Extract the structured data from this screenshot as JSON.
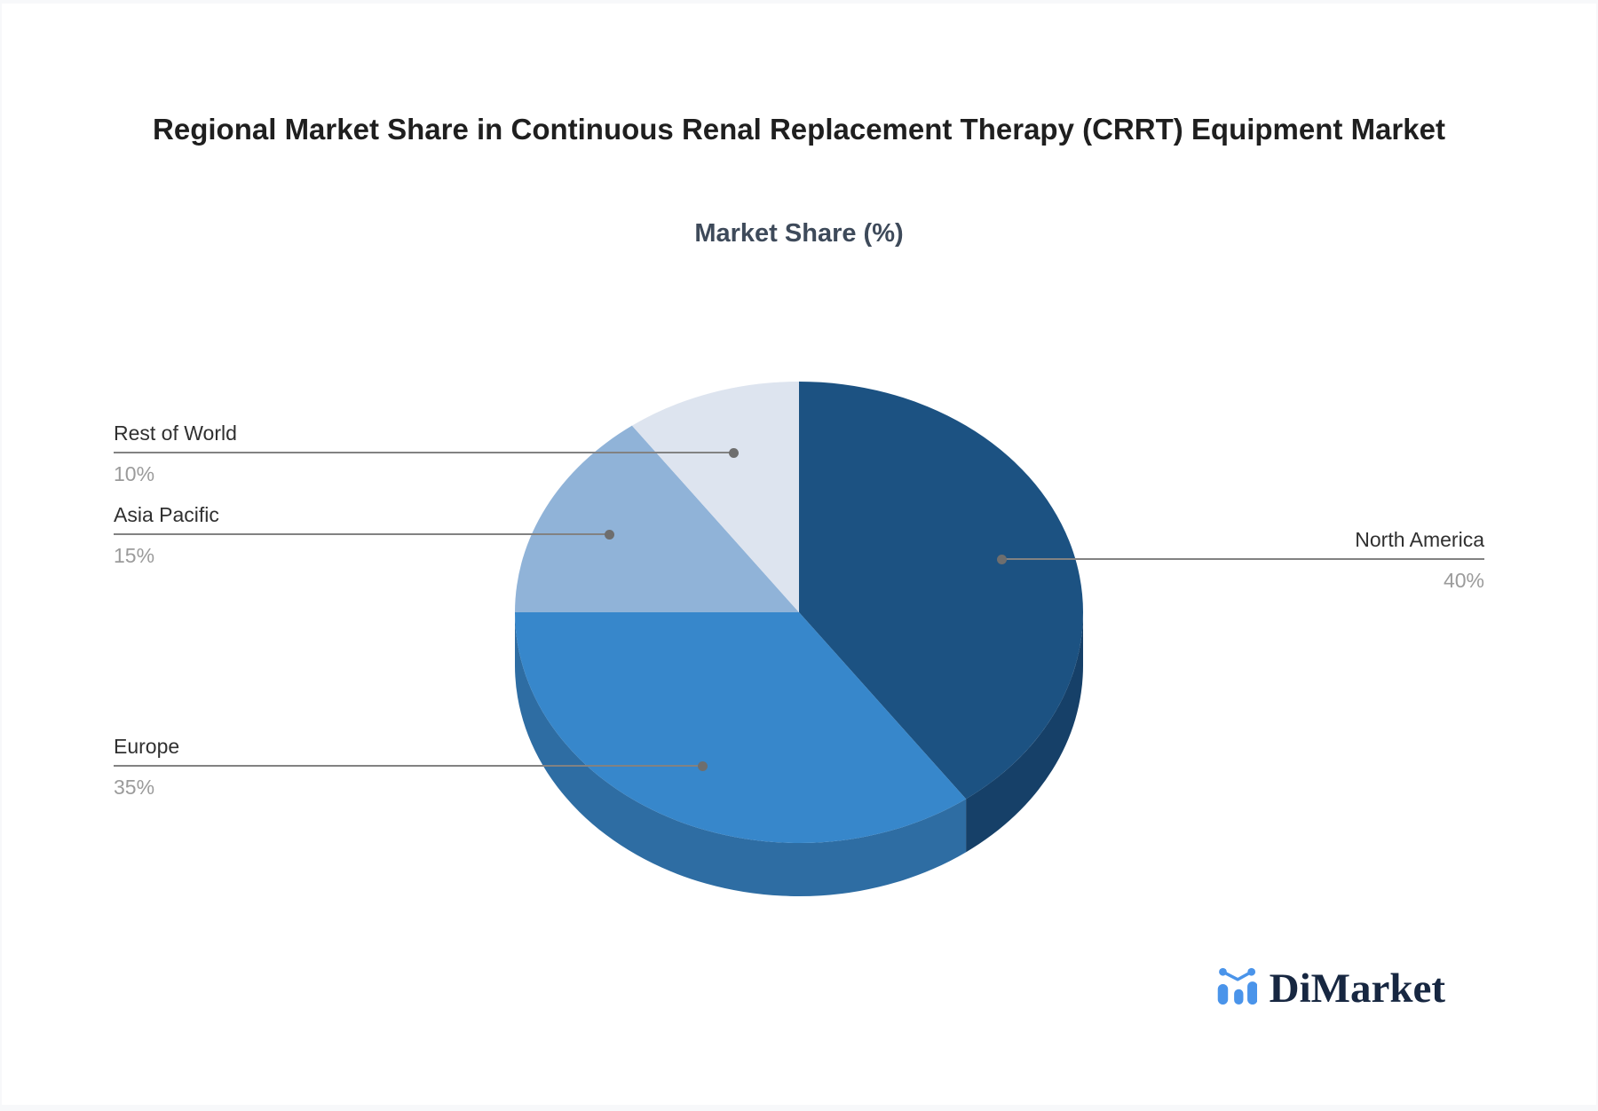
{
  "header": {
    "title": "Regional Market Share in Continuous Renal Replacement Therapy (CRRT) Equipment Market",
    "subtitle": "Market Share (%)"
  },
  "chart_data": {
    "type": "pie",
    "style": "3d-pie",
    "title": "Regional Market Share in Continuous Renal Replacement Therapy (CRRT) Equipment Market",
    "subtitle": "Market Share (%)",
    "unit": "%",
    "direction": "clockwise",
    "start_at": "12-o'clock",
    "series": [
      {
        "name": "North America",
        "value": 40,
        "pct_label": "40%",
        "color": "#1C5282",
        "rim_color": "#164068",
        "label_side": "right"
      },
      {
        "name": "Europe",
        "value": 35,
        "pct_label": "35%",
        "color": "#3787CB",
        "rim_color": "#2E6DA3",
        "label_side": "left"
      },
      {
        "name": "Asia Pacific",
        "value": 15,
        "pct_label": "15%",
        "color": "#90B3D8",
        "rim_color": "#90B3D8",
        "label_side": "left"
      },
      {
        "name": "Rest of World",
        "value": 10,
        "pct_label": "10%",
        "color": "#DDE4EF",
        "rim_color": "#DDE4EF",
        "label_side": "left"
      }
    ],
    "leader_line_color": "#828282",
    "leader_dot_color": "#6e6e6e",
    "label_text_color": "#303030",
    "pct_text_color": "#9b9b9b",
    "legend": "none"
  },
  "branding": {
    "logo_text": "DiMarket",
    "logo_icon": "bar-line-chart-icon",
    "logo_text_color": "#172741",
    "logo_icon_color": "#4A94EA"
  }
}
